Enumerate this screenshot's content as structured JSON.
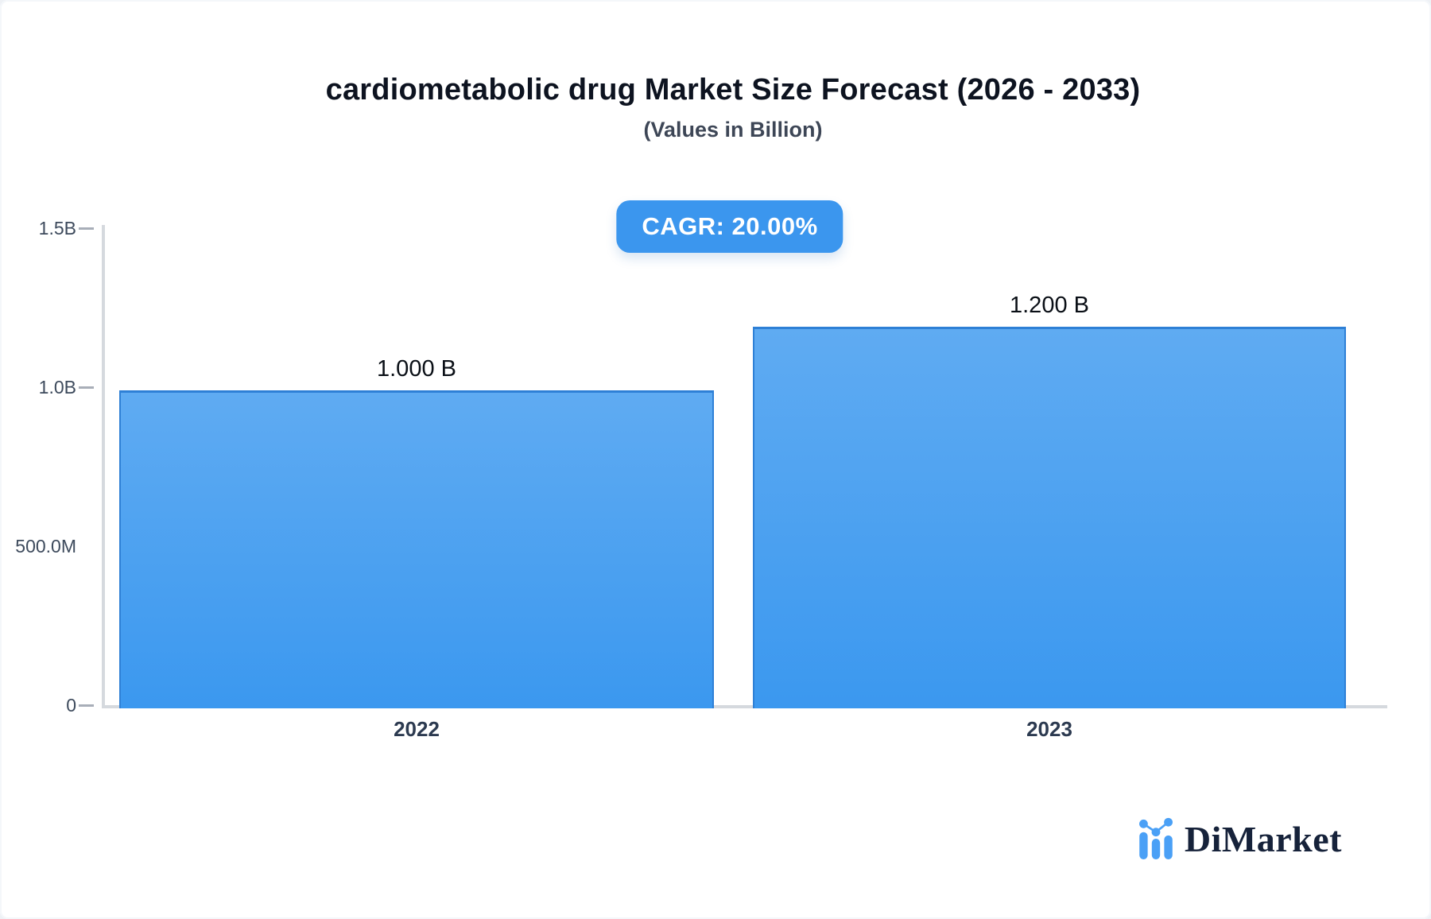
{
  "header": {
    "title": "cardiometabolic drug Market Size Forecast (2026 - 2033)",
    "subtitle": "(Values in Billion)"
  },
  "badge": {
    "label": "CAGR: 20.00%",
    "background": "#3b96ee",
    "text_color": "#ffffff"
  },
  "chart_data": {
    "type": "bar",
    "title": "cardiometabolic drug Market Size Forecast (2026 - 2033)",
    "subtitle": "(Values in Billion)",
    "categories": [
      "2022",
      "2023"
    ],
    "values": [
      1.0,
      1.2
    ],
    "value_labels": [
      "1.000 B",
      "1.200 B"
    ],
    "unit": "Billion",
    "ylim": [
      0,
      1.5
    ],
    "ytick_labels": [
      "1.5B",
      "1.0B",
      "500.0M",
      "0"
    ],
    "grid": "off",
    "legend": "none",
    "colors": {
      "bar_top": "#5fabf2",
      "bar_bottom": "#3b98ef",
      "bar_border": "#2e80d6",
      "axis_line": "#d5d9de",
      "tick_text": "#3d4a5c"
    }
  },
  "logo": {
    "text": "DiMarket",
    "icon": "combo-chart-logo-icon",
    "text_color": "#16223a",
    "icon_color": "#4aa0f6"
  }
}
